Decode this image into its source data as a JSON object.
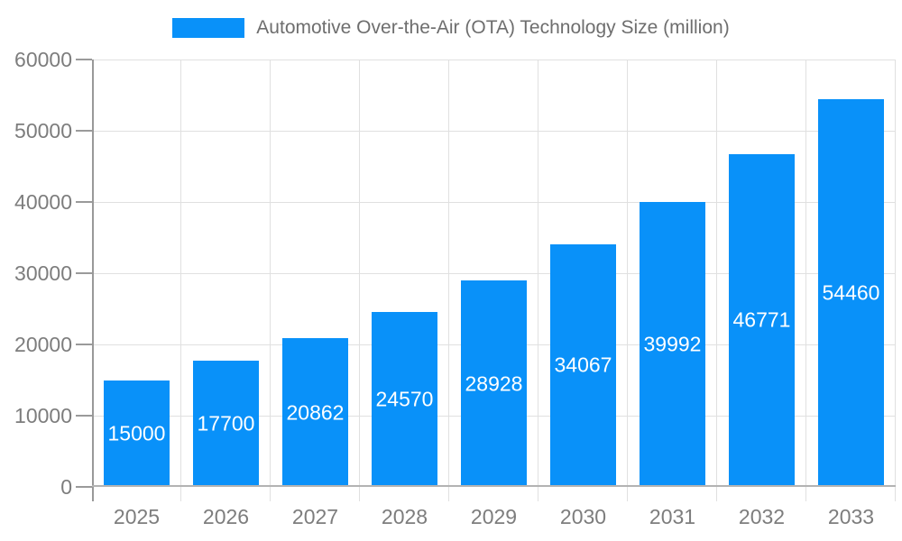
{
  "legend": {
    "label": "Automotive Over-the-Air (OTA) Technology Size (million)",
    "swatch_color": "#0991f9"
  },
  "chart_data": {
    "type": "bar",
    "title": "Automotive Over-the-Air (OTA) Technology Size (million)",
    "categories": [
      "2025",
      "2026",
      "2027",
      "2028",
      "2029",
      "2030",
      "2031",
      "2032",
      "2033"
    ],
    "values": [
      15000,
      17700,
      20862,
      24570,
      28928,
      34067,
      39992,
      46771,
      54460
    ],
    "xlabel": "",
    "ylabel": "",
    "ylim": [
      0,
      60000
    ],
    "yticks": [
      0,
      10000,
      20000,
      30000,
      40000,
      50000,
      60000
    ],
    "grid": true,
    "legend_position": "top",
    "bar_color": "#0991f9",
    "bar_label_color": "#ffffff",
    "axis_text_color": "#7d7d7d",
    "gridline_color": "#e0e0e0",
    "background_color": "#ffffff"
  }
}
